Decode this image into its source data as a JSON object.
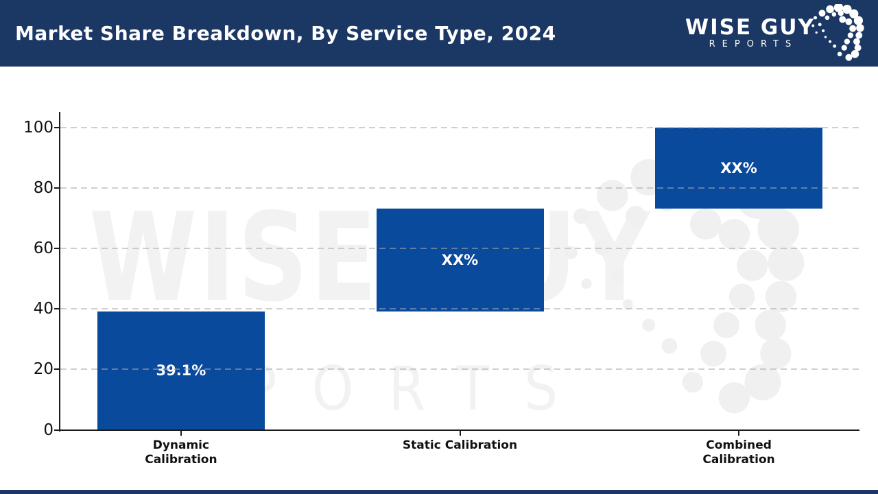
{
  "header": {
    "title": "Market Share Breakdown, By Service Type, 2024",
    "logo_line1": "WISE GUY",
    "logo_line2": "REPORTS"
  },
  "watermark": {
    "line1": "WISE GUY",
    "line2": "REPORTS"
  },
  "colors": {
    "header_bg": "#1b3764",
    "bar": "#0a4a9d",
    "grid": "#a8a8a8",
    "axis": "#1a1a1a",
    "watermark": "#f2f2f2",
    "bar_label": "#ffffff",
    "tick_label": "#111111"
  },
  "chart_data": {
    "type": "bar",
    "variant": "waterfall",
    "title": "Market Share Breakdown, By Service Type, 2024",
    "categories": [
      "Dynamic Calibration",
      "Static Calibration",
      "Combined Calibration"
    ],
    "category_lines": [
      [
        "Dynamic",
        "Calibration"
      ],
      [
        "Static Calibration"
      ],
      [
        "Combined",
        "Calibration"
      ]
    ],
    "segments": [
      {
        "category": "Dynamic Calibration",
        "start": 0,
        "end": 39.1,
        "label": "39.1%"
      },
      {
        "category": "Static Calibration",
        "start": 39.1,
        "end": 73.2,
        "label": "XX%"
      },
      {
        "category": "Combined Calibration",
        "start": 73.2,
        "end": 100,
        "label": "XX%"
      }
    ],
    "xlabel": "",
    "ylabel": "",
    "ylim": [
      0,
      100
    ],
    "yticks": [
      0,
      20,
      40,
      60,
      80,
      100
    ],
    "grid": "horizontal-dashed",
    "legend": null
  }
}
